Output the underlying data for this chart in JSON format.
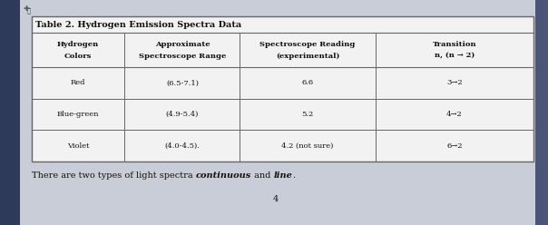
{
  "title": "Table 2. Hydrogen Emission Spectra Data",
  "col_headers_line1": [
    "Hydrogen",
    "Approximate",
    "Spectroscope Reading",
    "Transition"
  ],
  "col_headers_line2": [
    "Colors",
    "Spectroscope Range",
    "(experimental)",
    "n, (n → 2)"
  ],
  "rows": [
    [
      "Red",
      "(6.5-7.1)",
      "6.6",
      "3→2"
    ],
    [
      "Blue-green",
      "(4.9-5.4)",
      "5.2",
      "4→2"
    ],
    [
      "Violet",
      "(4.0-4.5).",
      "4.2 (not sure)",
      "6→2"
    ]
  ],
  "footer_normal": "There are two types of light spectra ",
  "footer_bold_italic1": "continuous",
  "footer_middle": " and ",
  "footer_bold_italic2": "line",
  "footer_end": ".",
  "page_number": "4",
  "left_bar_color": "#2d3a5a",
  "right_bar_color": "#4a5578",
  "page_bg": "#c8cdd8",
  "table_border_color": "#666666",
  "text_color": "#111111",
  "white": "#f0f0f0"
}
